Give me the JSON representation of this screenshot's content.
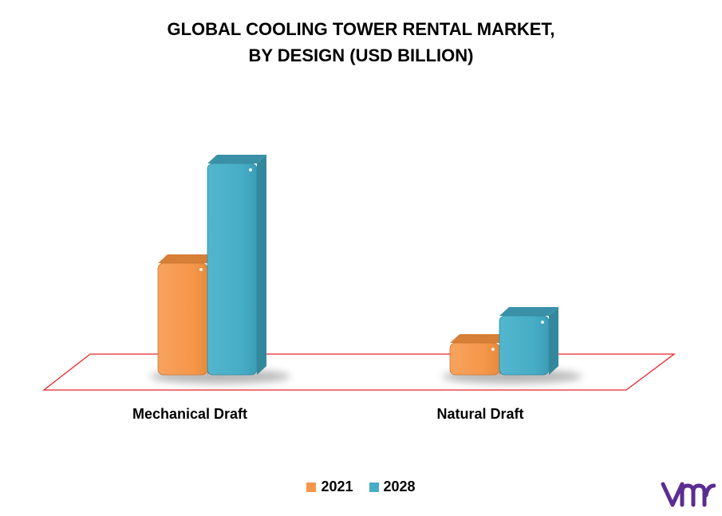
{
  "chart_data": {
    "type": "bar",
    "title_lines": [
      "GLOBAL COOLING TOWER RENTAL MARKET,",
      "BY DESIGN (USD BILLION)"
    ],
    "categories": [
      "Mechanical Draft",
      "Natural Draft"
    ],
    "series": [
      {
        "name": "2021",
        "values": [
          1.4,
          0.4
        ],
        "color": "#F5974A"
      },
      {
        "name": "2028",
        "values": [
          2.65,
          0.74
        ],
        "color": "#46ADC6"
      }
    ],
    "ylim": [
      0,
      3
    ],
    "grid": false,
    "legend_position": "bottom",
    "floor_color": "#E8242A"
  },
  "logo": {
    "icon": "vmr-logo-icon",
    "color": "#5B2D91"
  }
}
